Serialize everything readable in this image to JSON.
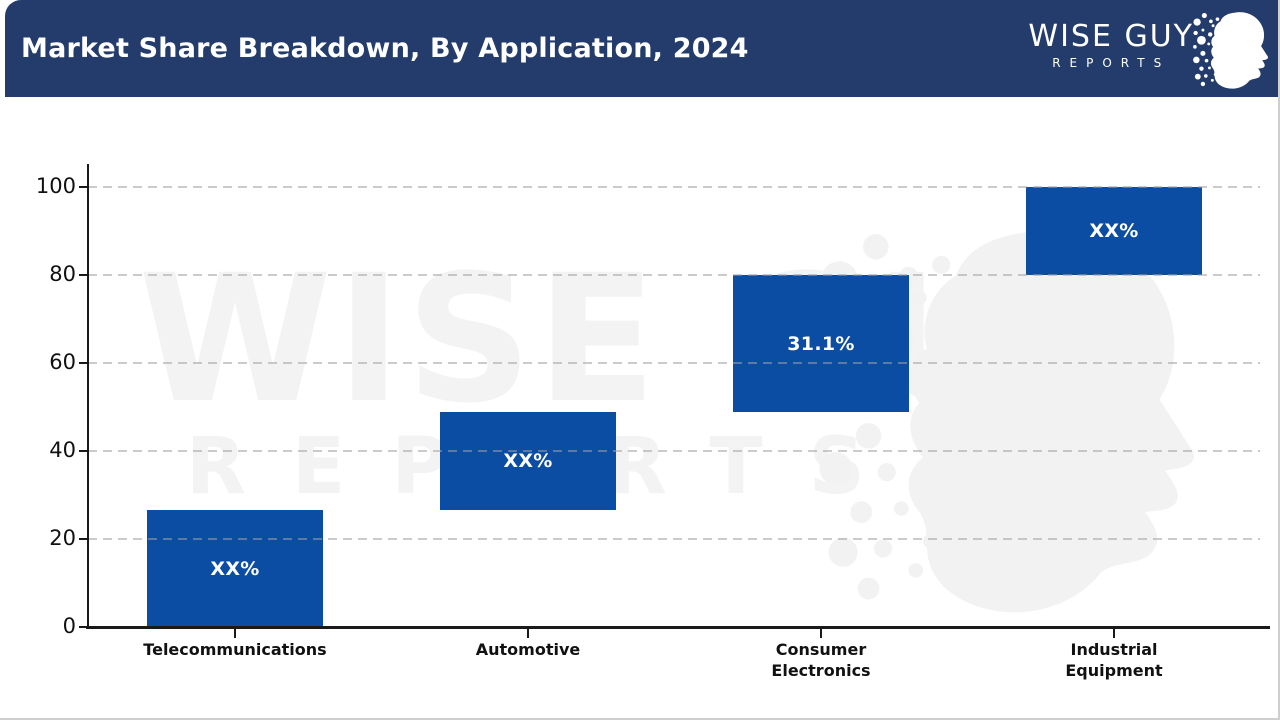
{
  "header": {
    "title": "Market Share Breakdown, By Application, 2024",
    "bg_color": "#243C6B",
    "logo": {
      "line1": "WISE GUY",
      "line2": "REPORTS"
    }
  },
  "watermark": {
    "line1": "WISE GUY",
    "line2": "REPORTS"
  },
  "chart_data": {
    "type": "bar",
    "subtype": "floating-waterfall",
    "title": "Market Share Breakdown, By Application, 2024",
    "categories": [
      "Telecommunications",
      "Automotive",
      "Consumer\nElectronics",
      "Industrial\nEquipment"
    ],
    "segments": [
      {
        "category": "Telecommunications",
        "start": 0.0,
        "end": 26.6,
        "span": 26.6,
        "label": "XX%"
      },
      {
        "category": "Automotive",
        "start": 26.6,
        "end": 48.9,
        "span": 22.3,
        "label": "XX%"
      },
      {
        "category": "Consumer Electronics",
        "start": 48.9,
        "end": 80.0,
        "span": 31.1,
        "label": "31.1%"
      },
      {
        "category": "Industrial Equipment",
        "start": 80.0,
        "end": 100.0,
        "span": 20.0,
        "label": "XX%"
      }
    ],
    "xlabel": "",
    "ylabel": "",
    "ylim": [
      0,
      100
    ],
    "yticks": [
      0,
      20,
      40,
      60,
      80,
      100
    ],
    "grid": "horizontal dashed, drawn over bars",
    "legend": "none",
    "bar_color": "#0B4DA2",
    "axis_color": "#1a1a1a"
  }
}
